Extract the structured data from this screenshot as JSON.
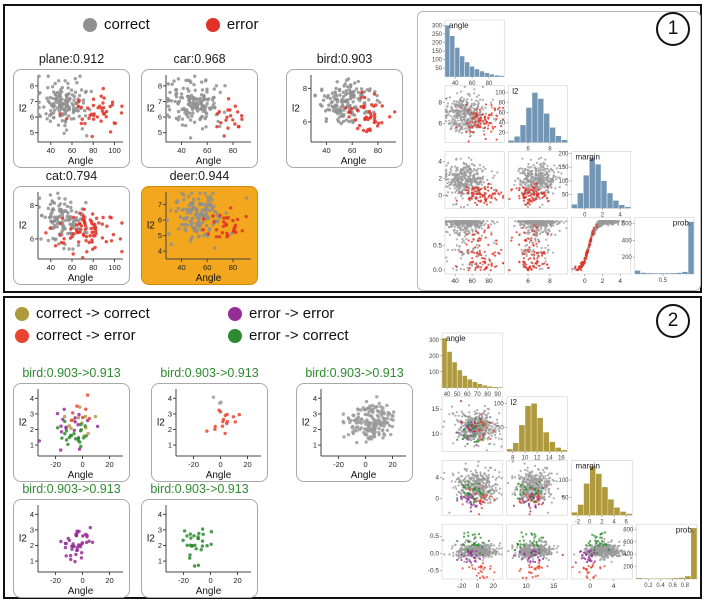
{
  "panels": [
    {
      "badge": "1",
      "legend": {
        "items": [
          {
            "label": "correct",
            "color": "#8f8f8f"
          },
          {
            "label": "error",
            "color": "#e23227"
          }
        ]
      }
    },
    {
      "badge": "2",
      "legend": {
        "items": [
          {
            "label": "correct -> correct",
            "color": "#b09a3e"
          },
          {
            "label": "error -> error",
            "color": "#952d95"
          },
          {
            "label": "correct -> error",
            "color": "#e8432e"
          },
          {
            "label": "error -> correct",
            "color": "#2e8b2e"
          }
        ]
      }
    }
  ],
  "chart_data": [
    {
      "panel": 1,
      "role": "card",
      "type": "scatter",
      "title": "plane:0.912",
      "title_color": "#1a1a1a",
      "highlight": false,
      "xlabel": "Angle",
      "ylabel": "l2",
      "xlim": [
        28,
        108
      ],
      "ylim": [
        4.4,
        8.7
      ],
      "xticks": [
        40,
        60,
        80,
        100
      ],
      "yticks": [
        5,
        6,
        7,
        8
      ],
      "clusters": [
        {
          "color": "#8f8f8f",
          "n": 150,
          "cx": 52,
          "cy": 6.9,
          "sx": 11,
          "sy": 0.75
        },
        {
          "color": "#e23227",
          "n": 42,
          "cx": 83,
          "cy": 6.3,
          "sx": 10,
          "sy": 0.55
        }
      ]
    },
    {
      "panel": 1,
      "role": "card",
      "type": "scatter",
      "title": "car:0.968",
      "title_color": "#1a1a1a",
      "highlight": false,
      "xlabel": "Angle",
      "ylabel": "l2",
      "xlim": [
        28,
        94
      ],
      "ylim": [
        4.4,
        8.7
      ],
      "xticks": [
        40,
        60,
        80
      ],
      "yticks": [
        5,
        6,
        7,
        8
      ],
      "clusters": [
        {
          "color": "#8f8f8f",
          "n": 150,
          "cx": 50,
          "cy": 6.9,
          "sx": 10,
          "sy": 0.8
        },
        {
          "color": "#e23227",
          "n": 20,
          "cx": 78,
          "cy": 6.0,
          "sx": 8,
          "sy": 0.5
        }
      ]
    },
    {
      "panel": 1,
      "role": "card",
      "type": "scatter",
      "title": "bird:0.903",
      "title_color": "#1a1a1a",
      "highlight": false,
      "xlabel": "Angle",
      "ylabel": "l2",
      "xlim": [
        28,
        94
      ],
      "ylim": [
        4.8,
        8.8
      ],
      "xticks": [
        40,
        60,
        80
      ],
      "yticks": [
        6,
        8
      ],
      "clusters": [
        {
          "color": "#8f8f8f",
          "n": 150,
          "cx": 55,
          "cy": 7.2,
          "sx": 10,
          "sy": 0.65
        },
        {
          "color": "#e23227",
          "n": 45,
          "cx": 73,
          "cy": 6.4,
          "sx": 9,
          "sy": 0.55
        }
      ]
    },
    {
      "panel": 1,
      "role": "card",
      "type": "scatter",
      "title": "cat:0.794",
      "title_color": "#1a1a1a",
      "highlight": false,
      "xlabel": "Angle",
      "ylabel": "l2",
      "xlim": [
        28,
        108
      ],
      "ylim": [
        4.8,
        8.8
      ],
      "xticks": [
        40,
        60,
        80,
        100
      ],
      "yticks": [
        6,
        8
      ],
      "clusters": [
        {
          "color": "#8f8f8f",
          "n": 120,
          "cx": 52,
          "cy": 7.2,
          "sx": 10,
          "sy": 0.7
        },
        {
          "color": "#e23227",
          "n": 78,
          "cx": 76,
          "cy": 6.5,
          "sx": 13,
          "sy": 0.65
        }
      ]
    },
    {
      "panel": 1,
      "role": "card",
      "type": "scatter",
      "title": "deer:0.944",
      "title_color": "#1a1a1a",
      "highlight": true,
      "bg": "#f2a71e",
      "xlabel": "Angle",
      "ylabel": "l2",
      "xlim": [
        28,
        94
      ],
      "ylim": [
        3.5,
        7.8
      ],
      "xticks": [
        40,
        60,
        80
      ],
      "yticks": [
        4,
        5,
        6,
        7
      ],
      "clusters": [
        {
          "color": "#8f8f8f",
          "n": 140,
          "cx": 52,
          "cy": 6.3,
          "sx": 10,
          "sy": 0.75
        },
        {
          "color": "#e23227",
          "n": 32,
          "cx": 71,
          "cy": 5.6,
          "sx": 10,
          "sy": 0.6
        }
      ]
    },
    {
      "panel": 1,
      "role": "splom",
      "type": "scatter-matrix",
      "hist_color": "#7396b5",
      "vars": [
        {
          "name": "angle",
          "lim": [
            28,
            98
          ],
          "ticks": [
            40,
            60,
            80
          ],
          "hist_lim": [
            28,
            98
          ],
          "hist_ticks": [
            40,
            60,
            80
          ],
          "bins": [
            300,
            238,
            170,
            120,
            85,
            60,
            44,
            32,
            22,
            14,
            8,
            5
          ],
          "hist_ymax": 320,
          "hist_yticks": [
            50,
            100,
            150,
            200,
            250,
            300
          ]
        },
        {
          "name": "l2",
          "lim": [
            4.2,
            9.6
          ],
          "ticks": [
            6,
            8
          ],
          "hist_lim": [
            4.2,
            9.6
          ],
          "hist_ticks": [
            6,
            8
          ],
          "bins": [
            4,
            12,
            35,
            70,
            100,
            88,
            58,
            30,
            13,
            5
          ],
          "hist_ymax": 110,
          "hist_yticks": [
            20,
            40,
            60,
            80,
            100
          ]
        },
        {
          "name": "margin",
          "lim": [
            -1.5,
            5.2
          ],
          "ticks": [
            0,
            2,
            4
          ],
          "hist_lim": [
            -1.5,
            5.2
          ],
          "hist_ticks": [
            0,
            2,
            4
          ],
          "bins": [
            14,
            55,
            120,
            185,
            160,
            100,
            55,
            28,
            12,
            5
          ],
          "hist_ymax": 200,
          "hist_yticks": [
            50,
            100,
            150,
            200
          ]
        },
        {
          "name": "prob.",
          "lim": [
            -0.08,
            1.08
          ],
          "ticks": [
            0,
            0.5
          ],
          "decimals": 1,
          "hist_lim": [
            0,
            1.05
          ],
          "hist_ticks": [
            0.5
          ],
          "bins": [
            40,
            14,
            10,
            8,
            8,
            8,
            10,
            14,
            25,
            620
          ],
          "hist_ymax": 650,
          "hist_yticks": [
            200,
            400,
            600
          ]
        }
      ],
      "classes": [
        {
          "label": "correct",
          "color": "#9a9a9a",
          "n": 380,
          "dist": {
            "angle": [
              52,
              12
            ],
            "l2": [
              7.0,
              0.9
            ],
            "margin": [
              1.9,
              1.1
            ]
          }
        },
        {
          "label": "error",
          "color": "#e23227",
          "n": 85,
          "dist": {
            "angle": [
              74,
              13
            ],
            "l2": [
              6.3,
              0.8
            ],
            "margin": [
              0.15,
              0.55
            ]
          }
        }
      ],
      "prob_rule": {
        "k": 2.6,
        "x0": 0.5,
        "noise": 0.035
      }
    },
    {
      "panel": 2,
      "role": "card",
      "type": "scatter",
      "title": "bird:0.903->0.913",
      "title_color": "#2e8b2e",
      "highlight": false,
      "xlabel": "Angle",
      "ylabel": "l2",
      "xlim": [
        -33,
        30
      ],
      "ylim": [
        0.3,
        4.6
      ],
      "xticks": [
        -20,
        0,
        20
      ],
      "yticks": [
        1,
        2,
        3,
        4
      ],
      "clusters": [
        {
          "color": "#b09a3e",
          "n": 12,
          "cx": -3,
          "cy": 2.5,
          "sx": 8,
          "sy": 0.55
        },
        {
          "color": "#952d95",
          "n": 18,
          "cx": -9,
          "cy": 2.1,
          "sx": 7,
          "sy": 0.6
        },
        {
          "color": "#2e8b2e",
          "n": 22,
          "cx": -5,
          "cy": 1.5,
          "sx": 6,
          "sy": 0.4
        },
        {
          "color": "#e8432e",
          "n": 7,
          "cx": 1,
          "cy": 3.1,
          "sx": 5,
          "sy": 0.45
        }
      ]
    },
    {
      "panel": 2,
      "role": "card",
      "type": "scatter",
      "title": "bird:0.903->0.913",
      "title_color": "#2e8b2e",
      "highlight": false,
      "xlabel": "Angle",
      "ylabel": "l2",
      "xlim": [
        -33,
        30
      ],
      "ylim": [
        0.3,
        4.6
      ],
      "xticks": [
        -20,
        0,
        20
      ],
      "yticks": [
        1,
        2,
        3,
        4
      ],
      "clusters": [
        {
          "color": "#e8432e",
          "n": 16,
          "cx": 2,
          "cy": 2.6,
          "sx": 5,
          "sy": 0.55
        },
        {
          "color": "#9a9a9a",
          "n": 3,
          "cx": -3,
          "cy": 3.7,
          "sx": 4,
          "sy": 0.15
        }
      ]
    },
    {
      "panel": 2,
      "role": "card",
      "type": "scatter",
      "title": "bird:0.903->0.913",
      "title_color": "#2e8b2e",
      "highlight": false,
      "xlabel": "Angle",
      "ylabel": "l2",
      "xlim": [
        -33,
        30
      ],
      "ylim": [
        0.3,
        4.6
      ],
      "xticks": [
        -20,
        0,
        20
      ],
      "yticks": [
        1,
        2,
        3,
        4
      ],
      "clusters": [
        {
          "color": "#9a9a9a",
          "n": 170,
          "cx": 4,
          "cy": 2.5,
          "sx": 9,
          "sy": 0.6
        }
      ]
    },
    {
      "panel": 2,
      "role": "card",
      "type": "scatter",
      "title": "bird:0.903->0.913",
      "title_color": "#2e8b2e",
      "highlight": false,
      "xlabel": "Angle",
      "ylabel": "l2",
      "xlim": [
        -33,
        30
      ],
      "ylim": [
        0.3,
        4.6
      ],
      "xticks": [
        -20,
        0,
        20
      ],
      "yticks": [
        1,
        2,
        3,
        4
      ],
      "clusters": [
        {
          "color": "#952d95",
          "n": 40,
          "cx": -5,
          "cy": 2.0,
          "sx": 6,
          "sy": 0.55
        }
      ]
    },
    {
      "panel": 2,
      "role": "card",
      "type": "scatter",
      "title": "bird:0.903->0.913",
      "title_color": "#2e8b2e",
      "highlight": false,
      "xlabel": "Angle",
      "ylabel": "l2",
      "xlim": [
        -33,
        30
      ],
      "ylim": [
        0.3,
        4.6
      ],
      "xticks": [
        -20,
        0,
        20
      ],
      "yticks": [
        1,
        2,
        3,
        4
      ],
      "clusters": [
        {
          "color": "#2e8b2e",
          "n": 26,
          "cx": -10,
          "cy": 2.3,
          "sx": 5,
          "sy": 0.5
        },
        {
          "color": "#2e8b2e",
          "n": 2,
          "cx": -10,
          "cy": 0.7,
          "sx": 2,
          "sy": 0.08
        }
      ]
    },
    {
      "panel": 2,
      "role": "splom",
      "type": "scatter-matrix",
      "hist_color": "#b09a3e",
      "vars": [
        {
          "name": "angle",
          "lim": [
            -45,
            32
          ],
          "ticks": [
            -20,
            0,
            20
          ],
          "hist_lim": [
            35,
            95
          ],
          "hist_ticks": [
            40,
            50,
            60,
            70,
            80,
            90
          ],
          "bins": [
            310,
            225,
            160,
            110,
            75,
            52,
            36,
            24,
            14,
            8,
            5,
            3
          ],
          "hist_ymax": 330,
          "hist_yticks": [
            100,
            200,
            300
          ]
        },
        {
          "name": "l2",
          "lim": [
            6.5,
            17.5
          ],
          "ticks": [
            10,
            15
          ],
          "hist_lim": [
            7,
            17
          ],
          "hist_ticks": [
            8,
            10,
            12,
            14,
            16
          ],
          "bins": [
            5,
            18,
            55,
            95,
            100,
            70,
            40,
            20,
            8,
            3
          ],
          "hist_ymax": 110,
          "hist_yticks": [
            50,
            100
          ]
        },
        {
          "name": "margin",
          "lim": [
            -3.2,
            7.2
          ],
          "ticks": [
            0,
            4
          ],
          "hist_lim": [
            -3,
            7
          ],
          "hist_ticks": [
            -2,
            0,
            2,
            4,
            6
          ],
          "bins": [
            8,
            30,
            90,
            140,
            118,
            80,
            45,
            22,
            10,
            4
          ],
          "hist_ymax": 150,
          "hist_yticks": [
            50,
            100
          ]
        },
        {
          "name": "prob.",
          "lim": [
            -0.75,
            0.85
          ],
          "ticks": [
            -0.5,
            0,
            0.5
          ],
          "decimals": 1,
          "hist_lim": [
            0,
            1
          ],
          "hist_ticks": [
            0.2,
            0.4,
            0.6,
            0.8
          ],
          "bins": [
            14,
            8,
            6,
            6,
            8,
            10,
            14,
            20,
            45,
            820
          ],
          "hist_ymax": 850,
          "hist_yticks": [
            200,
            400,
            600,
            800
          ]
        }
      ],
      "classes": [
        {
          "label": "correct -> correct",
          "color": "#9a9a9a",
          "n": 380,
          "dist": {
            "angle": [
              -2,
              13
            ],
            "l2": [
              11.5,
              1.6
            ],
            "margin": [
              2.2,
              1.5
            ],
            "prob.": [
              0.08,
              0.1
            ]
          }
        },
        {
          "label": "error -> error",
          "color": "#952d95",
          "n": 26,
          "dist": {
            "angle": [
              -10,
              8
            ],
            "l2": [
              11.0,
              1.4
            ],
            "margin": [
              -0.8,
              0.9
            ],
            "prob.": [
              -0.05,
              0.12
            ]
          }
        },
        {
          "label": "correct -> error",
          "color": "#e8432e",
          "n": 24,
          "dist": {
            "angle": [
              4,
              9
            ],
            "l2": [
              11.6,
              1.5
            ],
            "margin": [
              0.3,
              1.0
            ],
            "prob.": [
              -0.42,
              0.16
            ]
          }
        },
        {
          "label": "error -> correct",
          "color": "#2e8b2e",
          "n": 30,
          "dist": {
            "angle": [
              -9,
              8
            ],
            "l2": [
              11.0,
              1.5
            ],
            "margin": [
              1.0,
              1.1
            ],
            "prob.": [
              0.4,
              0.16
            ]
          }
        }
      ]
    }
  ]
}
